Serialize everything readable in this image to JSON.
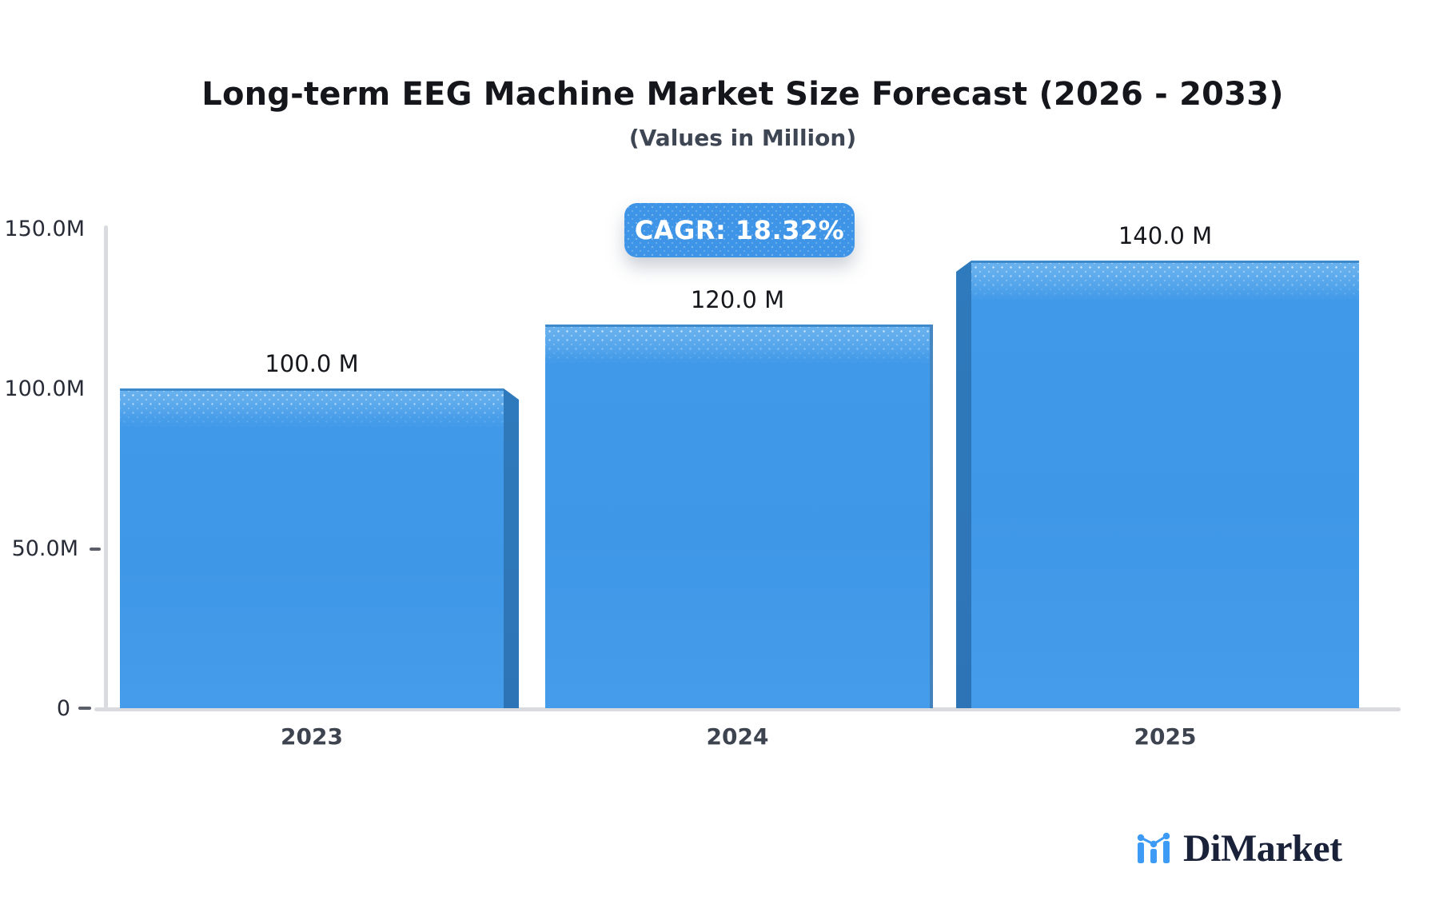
{
  "title": "Long-term EEG Machine Market Size Forecast (2026 - 2033)",
  "subtitle": "(Values in Million)",
  "cagr_badge": "CAGR: 18.32%",
  "chart_data": {
    "type": "bar",
    "title": "Long-term EEG Machine Market Size Forecast (2026 - 2033)",
    "subtitle": "(Values in Million)",
    "unit": "Million",
    "categories": [
      "2023",
      "2024",
      "2025"
    ],
    "values": [
      100.0,
      120.0,
      140.0
    ],
    "data_labels": [
      "100.0 M",
      "120.0 M",
      "140.0 M"
    ],
    "ylim": [
      0,
      150
    ],
    "ytick_labels": [
      "150.0M",
      "100.0M",
      "50.0M",
      "0"
    ],
    "grid": false,
    "legend": false,
    "cagr_percent": 18.32,
    "colors": {
      "bar": "#419ae9",
      "bar_highlight": "#66aff1",
      "bar_side": "#2d74b6",
      "badge": "#3e94e6",
      "axis": "#d9dbde"
    }
  },
  "logo": {
    "text": "DiMarket",
    "icon_color": "#3d9bf5",
    "text_color": "#1a2239"
  }
}
